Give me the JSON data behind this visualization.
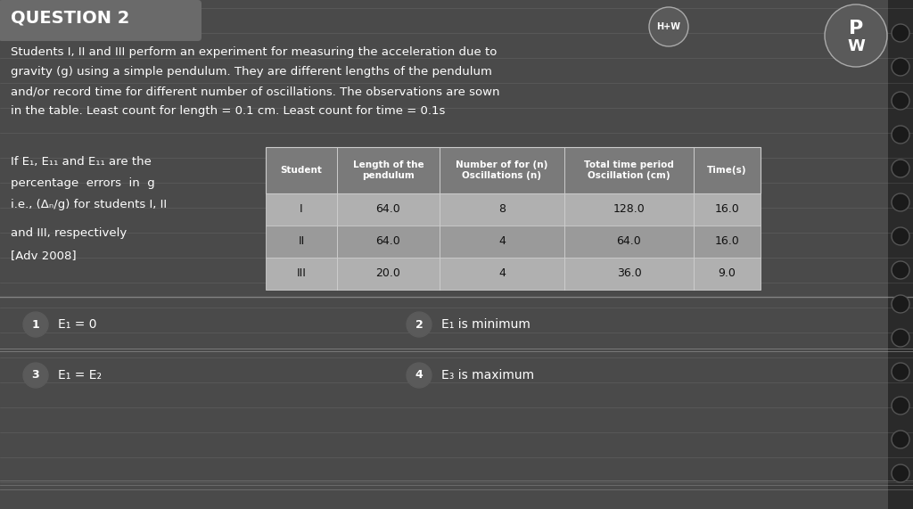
{
  "title": "QUESTION 2",
  "body_text": "Students I, II and III perform an experiment for measuring the acceleration due to\ngravity (g) using a simple pendulum. They are different lengths of the pendulum\nand/or record time for different number of oscillations. The observations are sown\nin the table. Least count for length = 0.1 cm. Least count for time = 0.1s",
  "left_text_lines": [
    "If E₁, E₁₁ and E₁₁ are the",
    "percentage  errors  in  g",
    "i.e., (Δₙ/g) for students I, II",
    "and III, respectively",
    "[Adv 2008]"
  ],
  "table_headers": [
    "Student",
    "Length of the\npendulum",
    "Number of for (n)\nOscillations (n)",
    "Total time period\nOscillation (cm)",
    "Time(s)"
  ],
  "table_rows": [
    [
      "I",
      "64.0",
      "8",
      "128.0",
      "16.0"
    ],
    [
      "II",
      "64.0",
      "4",
      "64.0",
      "16.0"
    ],
    [
      "III",
      "20.0",
      "4",
      "36.0",
      "9.0"
    ]
  ],
  "options": [
    {
      "num": "1",
      "text": "E₁ = 0"
    },
    {
      "num": "2",
      "text": "E₁ is minimum"
    },
    {
      "num": "3",
      "text": "E₁ = E₂"
    },
    {
      "num": "4",
      "text": "E₃ is maximum"
    }
  ],
  "bg_color": "#4a4a4a",
  "title_bg": "#6a6a6a",
  "table_header_bg": "#7a7a7a",
  "table_row1_bg": "#b0b0b0",
  "table_row2_bg": "#9a9a9a",
  "table_row3_bg": "#b0b0b0",
  "text_color": "#ffffff",
  "dark_text_color": "#111111",
  "option_circle_color": "#5a5a5a",
  "option_bg": "#555555",
  "hw_circle_color": "#5a5a5a",
  "separator_color": "#aaaaaa"
}
